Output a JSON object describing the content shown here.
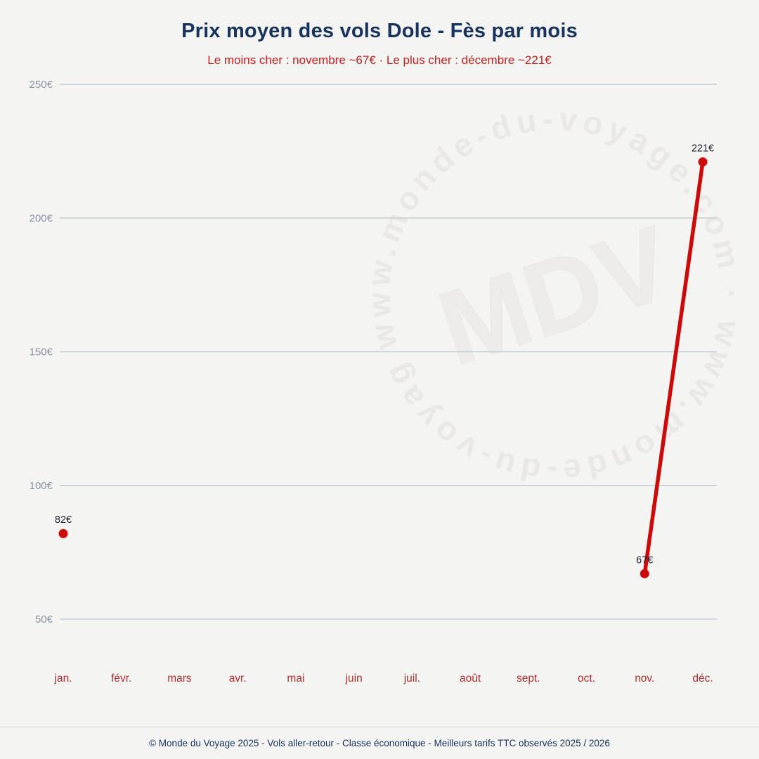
{
  "chart_data": {
    "type": "line",
    "title": "Prix moyen des vols Dole - Fès par mois",
    "subtitle": "Le moins cher : novembre ~67€ · Le plus cher : décembre ~221€",
    "categories": [
      "jan.",
      "févr.",
      "mars",
      "avr.",
      "mai",
      "juin",
      "juil.",
      "août",
      "sept.",
      "oct.",
      "nov.",
      "déc."
    ],
    "values": [
      82,
      null,
      null,
      null,
      null,
      null,
      null,
      null,
      null,
      null,
      67,
      221
    ],
    "unit": "€",
    "labeled_points": [
      {
        "month": "jan.",
        "index": 0,
        "value": 82,
        "label": "82€"
      },
      {
        "month": "nov.",
        "index": 10,
        "value": 67,
        "label": "67€"
      },
      {
        "month": "déc.",
        "index": 11,
        "value": 221,
        "label": "221€"
      }
    ],
    "y_ticks": [
      250,
      200,
      150,
      100,
      50
    ],
    "y_tick_labels": [
      "250€",
      "200€",
      "150€",
      "100€",
      "50€"
    ],
    "ylim": [
      50,
      250
    ],
    "grid": true,
    "legend": "none",
    "colors": {
      "line": "#cc0a0a",
      "point": "#cc0a0a",
      "title": "#18335e",
      "subtitle": "#c41e1e",
      "month_labels": "#b32d2d",
      "y_labels": "#8a94a6",
      "gridline": "#c4cbd7",
      "point_label": "#1c2430",
      "background": "#f4f4f2"
    }
  },
  "watermark": {
    "circle_text": "www.monde-du-voyage.com · www.monde-du-voyage.com ·",
    "center_text": "MDV"
  },
  "footer": {
    "text": "© Monde du Voyage 2025 - Vols aller-retour - Classe économique - Meilleurs tarifs TTC observés 2025 / 2026"
  }
}
